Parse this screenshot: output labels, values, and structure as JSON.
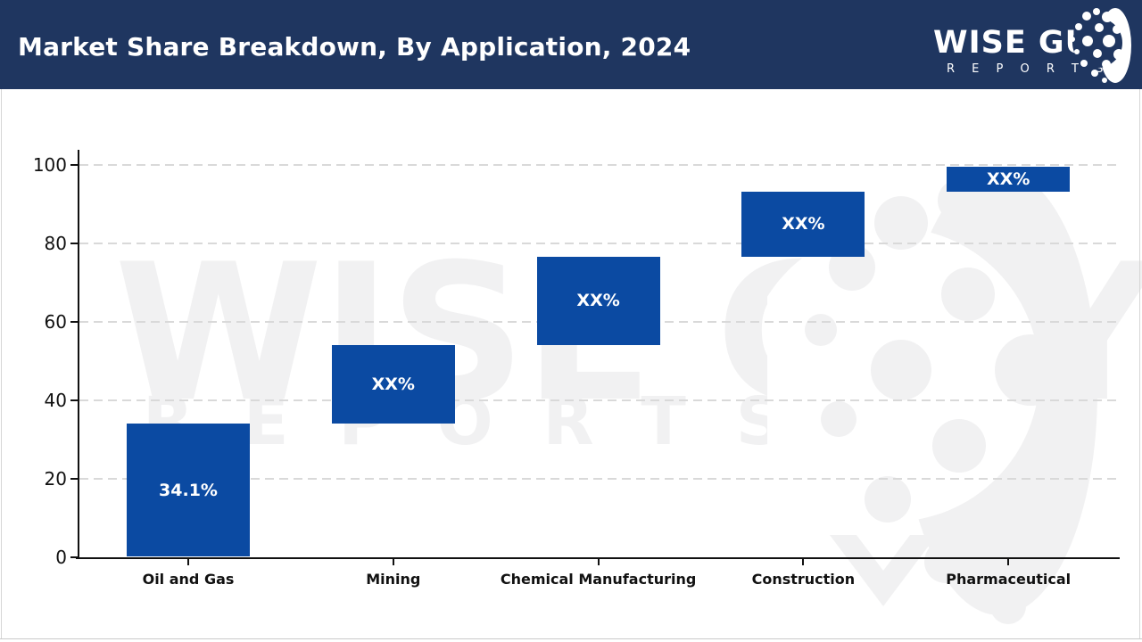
{
  "header": {
    "title": "Market Share Breakdown, By Application, 2024",
    "bg_color": "#1f3660",
    "logo": {
      "line1": "WISE GUY",
      "line2": "R E P O R T S"
    }
  },
  "watermark": {
    "line1": "WISE GUY",
    "line2": "REPORTS"
  },
  "chart_data": {
    "type": "bar",
    "subtype": "waterfall-floating-segments",
    "title": "Market Share Breakdown, By Application, 2024",
    "categories": [
      "Oil and Gas",
      "Mining",
      "Chemical Manufacturing",
      "Construction",
      "Pharmaceutical"
    ],
    "segments": [
      {
        "category": "Oil and Gas",
        "start": 0,
        "end": 34.1,
        "label": "34.1%"
      },
      {
        "category": "Mining",
        "start": 34.1,
        "end": 54,
        "label": "XX%"
      },
      {
        "category": "Chemical Manufacturing",
        "start": 54,
        "end": 76.6,
        "label": "XX%"
      },
      {
        "category": "Construction",
        "start": 76.6,
        "end": 93.2,
        "label": "XX%"
      },
      {
        "category": "Pharmaceutical",
        "start": 93.2,
        "end": 99.5,
        "label": "XX%"
      }
    ],
    "xlabel": "",
    "ylabel": "",
    "ylim": [
      0,
      100
    ],
    "yticks": [
      0,
      20,
      40,
      60,
      80,
      100
    ],
    "grid": "horizontal dashed",
    "legend": "none",
    "bar_color": "#0b4aa2",
    "bar_label_color": "#ffffff",
    "axis_color": "#111111",
    "gridline_color": "#d9d9d9"
  }
}
